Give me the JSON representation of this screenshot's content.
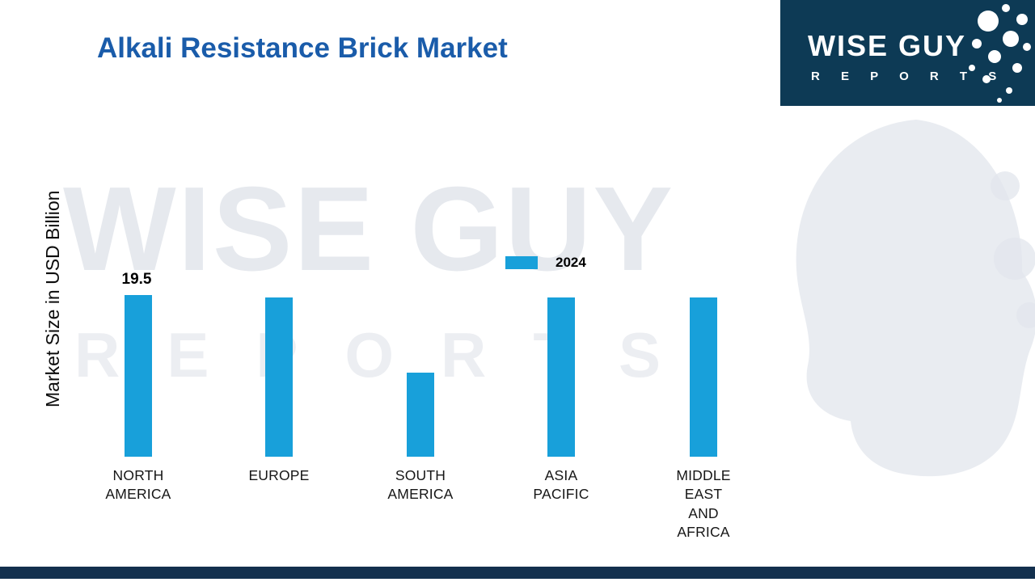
{
  "page": {
    "title": "Alkali Resistance Brick Market"
  },
  "logo": {
    "name": "WISE GUY",
    "tagline": "R E P O R T S"
  },
  "watermark": {
    "line1": "WISE GUY",
    "line2": "REPORTS"
  },
  "chart_data": {
    "type": "bar",
    "title": "Alkali Resistance Brick Market",
    "ylabel": "Market Size in USD Billion",
    "legend": [
      "2024"
    ],
    "legend_position": "top-right-of-plot",
    "grid": false,
    "ylim": [
      0,
      20
    ],
    "bar_color": "#18a0da",
    "categories": [
      "NORTH AMERICA",
      "EUROPE",
      "SOUTH AMERICA",
      "ASIA PACIFIC",
      "MIDDLE EAST AND AFRICA"
    ],
    "categories_lines": [
      [
        "NORTH",
        "AMERICA"
      ],
      [
        "EUROPE"
      ],
      [
        "SOUTH",
        "AMERICA"
      ],
      [
        "ASIA",
        "PACIFIC"
      ],
      [
        "MIDDLE",
        "EAST",
        "AND",
        "AFRICA"
      ]
    ],
    "values": [
      19.5,
      19.2,
      10.1,
      19.2,
      19.2
    ],
    "value_labels": [
      "19.5",
      "",
      "",
      "",
      ""
    ]
  }
}
